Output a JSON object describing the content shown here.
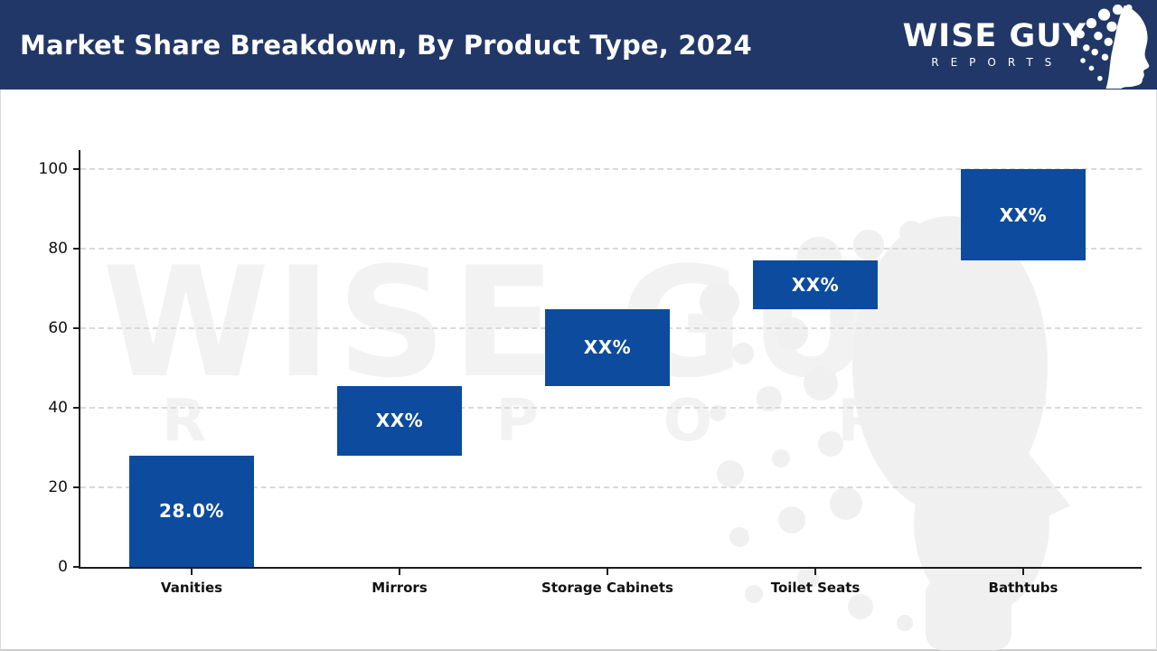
{
  "header": {
    "title": "Market Share Breakdown, By Product Type, 2024",
    "logo": {
      "line1": "WISE GUY",
      "line2": "REPORTS",
      "icon": "dotted-face-profile"
    }
  },
  "watermark": {
    "line1": "WISE GUY",
    "line2": "REPORTS",
    "icon": "dotted-face-profile"
  },
  "colors": {
    "header_bg": "#213767",
    "bar": "#0d4b9e",
    "bar_label": "#ffffff",
    "grid": "#d9d9d9",
    "axis": "#1c1c1c",
    "watermark": "#f2f2f2",
    "title_text": "#ffffff"
  },
  "chart_data": {
    "type": "bar",
    "subtype": "waterfall-floating-bars",
    "title": "Market Share Breakdown, By Product Type, 2024",
    "categories": [
      "Vanities",
      "Mirrors",
      "Storage Cabinets",
      "Toilet Seats",
      "Bathtubs"
    ],
    "segments": [
      {
        "category": "Vanities",
        "start": 0,
        "end": 28,
        "label": "28.0%"
      },
      {
        "category": "Mirrors",
        "start": 28,
        "end": 45.5,
        "label": "XX%"
      },
      {
        "category": "Storage Cabinets",
        "start": 45.5,
        "end": 64.8,
        "label": "XX%"
      },
      {
        "category": "Toilet Seats",
        "start": 64.8,
        "end": 77,
        "label": "XX%"
      },
      {
        "category": "Bathtubs",
        "start": 77,
        "end": 100,
        "label": "XX%"
      }
    ],
    "xlabel": "",
    "ylabel": "",
    "ylim": [
      0,
      105
    ],
    "yticks": [
      0,
      20,
      40,
      60,
      80,
      100
    ],
    "grid": "dashed-horizontal",
    "legend": "none"
  }
}
